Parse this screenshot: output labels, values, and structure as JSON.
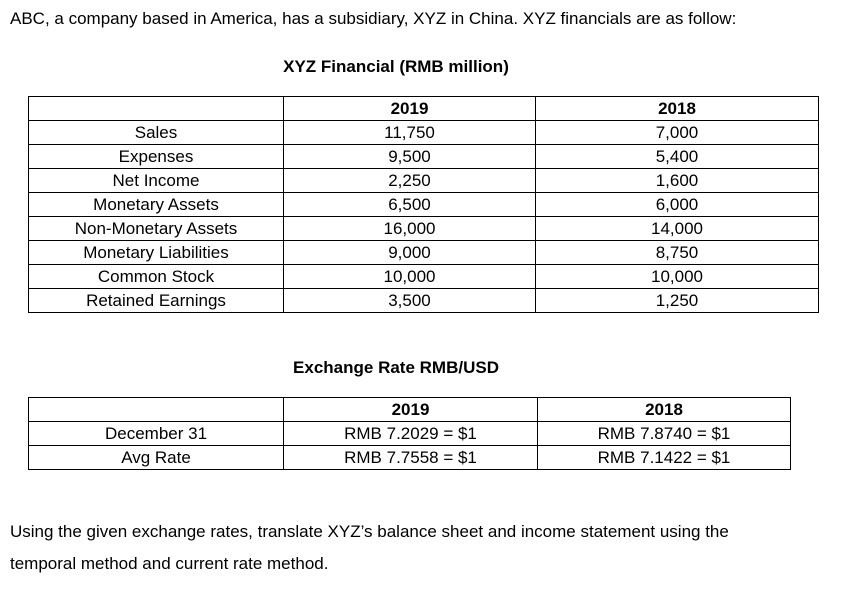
{
  "intro": "ABC, a company based in America, has a subsidiary, XYZ in China. XYZ financials are as follow:",
  "financial_table": {
    "title": "XYZ Financial (RMB million)",
    "headers": [
      "",
      "2019",
      "2018"
    ],
    "rows": [
      {
        "label": "Sales",
        "values": [
          "11,750",
          "7,000"
        ]
      },
      {
        "label": "Expenses",
        "values": [
          "9,500",
          "5,400"
        ]
      },
      {
        "label": "Net Income",
        "values": [
          "2,250",
          "1,600"
        ]
      },
      {
        "label": "Monetary Assets",
        "values": [
          "6,500",
          "6,000"
        ]
      },
      {
        "label": "Non-Monetary Assets",
        "values": [
          "16,000",
          "14,000"
        ]
      },
      {
        "label": "Monetary Liabilities",
        "values": [
          "9,000",
          "8,750"
        ]
      },
      {
        "label": "Common Stock",
        "values": [
          "10,000",
          "10,000"
        ]
      },
      {
        "label": "Retained Earnings",
        "values": [
          "3,500",
          "1,250"
        ]
      }
    ]
  },
  "exchange_table": {
    "title": "Exchange Rate RMB/USD",
    "headers": [
      "",
      "2019",
      "2018"
    ],
    "rows": [
      {
        "label": "December 31",
        "values": [
          "RMB 7.2029 = $1",
          "RMB 7.8740 = $1"
        ]
      },
      {
        "label": "Avg Rate",
        "values": [
          "RMB 7.7558 = $1",
          "RMB 7.1422 = $1"
        ]
      }
    ]
  },
  "instructions": "Using the given exchange rates, translate XYZ’s balance sheet and income statement using the temporal method and current rate method."
}
